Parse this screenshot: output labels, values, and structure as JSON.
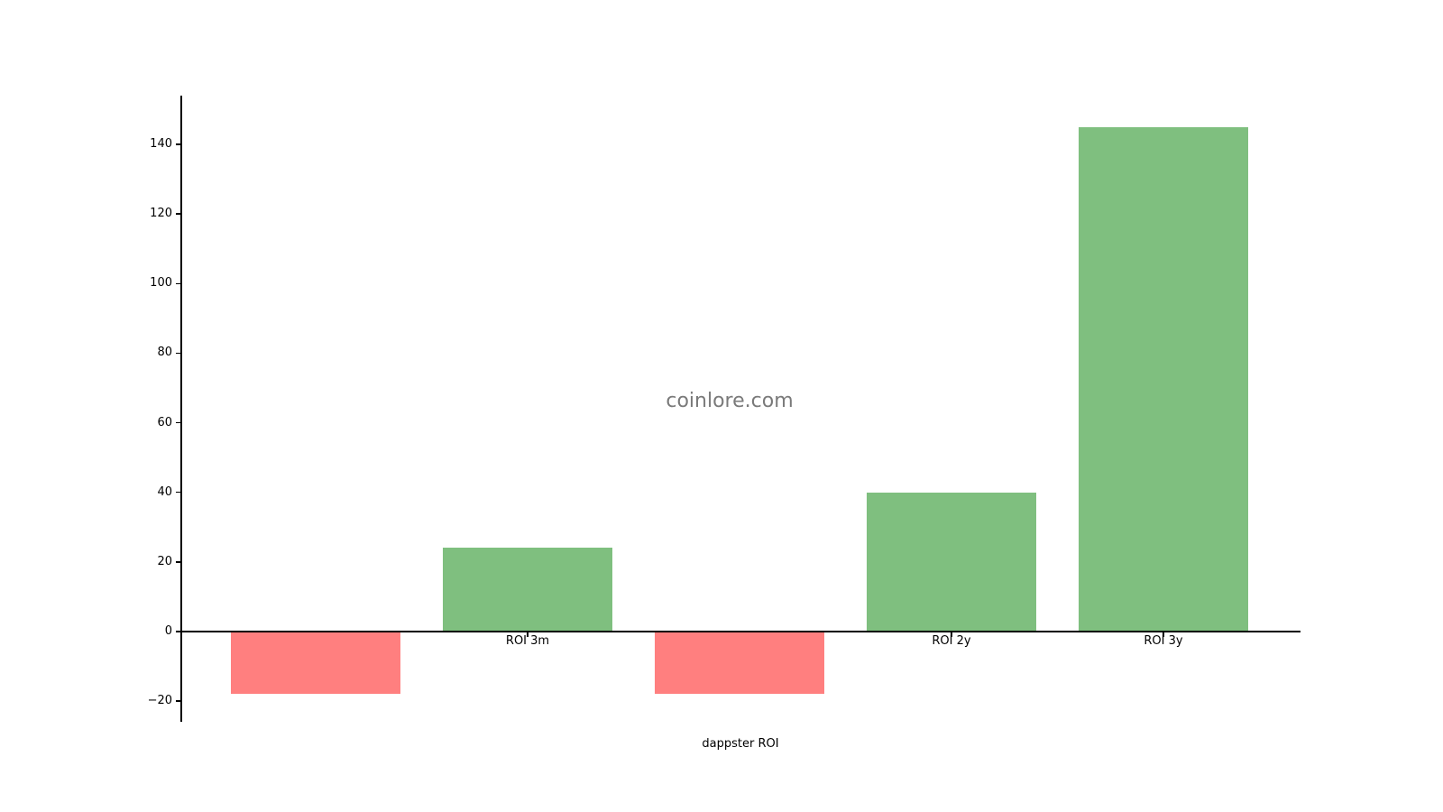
{
  "watermark": "coinlore.com",
  "chart_data": {
    "type": "bar",
    "title": "",
    "xlabel": "dappster ROI",
    "ylabel": "",
    "categories": [
      "",
      "ROI 3m",
      "",
      "ROI 2y",
      "ROI 3y"
    ],
    "values": [
      -18,
      24,
      -18,
      40,
      145
    ],
    "bar_colors": [
      "#ff7f7f",
      "#7fbf7f",
      "#ff7f7f",
      "#7fbf7f",
      "#7fbf7f"
    ],
    "positive_color": "#7fbf7f",
    "negative_color": "#ff7f7f",
    "y_ticks": [
      -20,
      0,
      20,
      40,
      60,
      80,
      100,
      120,
      140
    ],
    "ylim": [
      -26,
      154
    ],
    "grid": false,
    "legend_position": "none",
    "note": "two red bars are drawn over their x tick labels, hiding them"
  }
}
